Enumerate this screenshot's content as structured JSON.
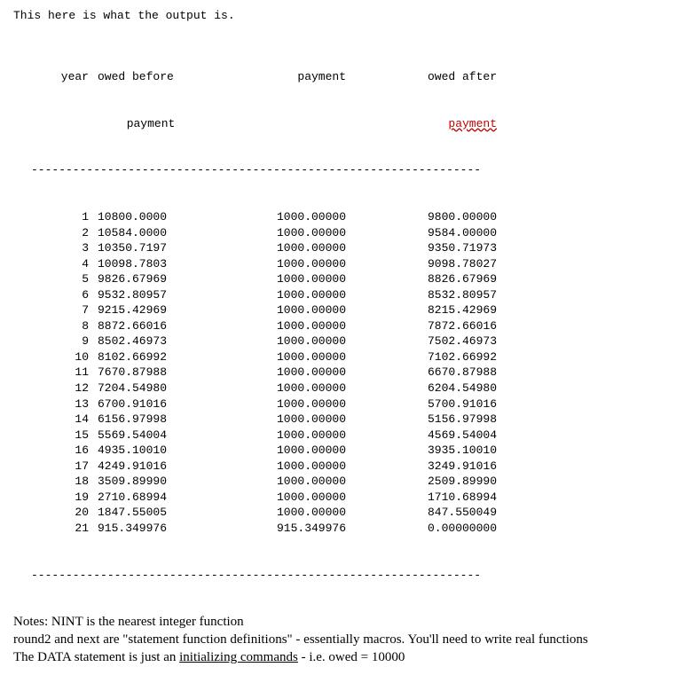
{
  "intro": "This here is what the output is.",
  "headers": {
    "year": "year",
    "owed_before_1": "owed before",
    "owed_before_2": "payment",
    "payment": "payment",
    "owed_after_1": "owed after",
    "owed_after_2": "payment"
  },
  "dashline": "-----------------------------------------------------------------",
  "rows": [
    {
      "year": "1",
      "owed_before": "10800.0000",
      "payment": "1000.00000",
      "owed_after": "9800.00000"
    },
    {
      "year": "2",
      "owed_before": "10584.0000",
      "payment": "1000.00000",
      "owed_after": "9584.00000"
    },
    {
      "year": "3",
      "owed_before": "10350.7197",
      "payment": "1000.00000",
      "owed_after": "9350.71973"
    },
    {
      "year": "4",
      "owed_before": "10098.7803",
      "payment": "1000.00000",
      "owed_after": "9098.78027"
    },
    {
      "year": "5",
      "owed_before": "9826.67969",
      "payment": "1000.00000",
      "owed_after": "8826.67969"
    },
    {
      "year": "6",
      "owed_before": "9532.80957",
      "payment": "1000.00000",
      "owed_after": "8532.80957"
    },
    {
      "year": "7",
      "owed_before": "9215.42969",
      "payment": "1000.00000",
      "owed_after": "8215.42969"
    },
    {
      "year": "8",
      "owed_before": "8872.66016",
      "payment": "1000.00000",
      "owed_after": "7872.66016"
    },
    {
      "year": "9",
      "owed_before": "8502.46973",
      "payment": "1000.00000",
      "owed_after": "7502.46973"
    },
    {
      "year": "10",
      "owed_before": "8102.66992",
      "payment": "1000.00000",
      "owed_after": "7102.66992"
    },
    {
      "year": "11",
      "owed_before": "7670.87988",
      "payment": "1000.00000",
      "owed_after": "6670.87988"
    },
    {
      "year": "12",
      "owed_before": "7204.54980",
      "payment": "1000.00000",
      "owed_after": "6204.54980"
    },
    {
      "year": "13",
      "owed_before": "6700.91016",
      "payment": "1000.00000",
      "owed_after": "5700.91016"
    },
    {
      "year": "14",
      "owed_before": "6156.97998",
      "payment": "1000.00000",
      "owed_after": "5156.97998"
    },
    {
      "year": "15",
      "owed_before": "5569.54004",
      "payment": "1000.00000",
      "owed_after": "4569.54004"
    },
    {
      "year": "16",
      "owed_before": "4935.10010",
      "payment": "1000.00000",
      "owed_after": "3935.10010"
    },
    {
      "year": "17",
      "owed_before": "4249.91016",
      "payment": "1000.00000",
      "owed_after": "3249.91016"
    },
    {
      "year": "18",
      "owed_before": "3509.89990",
      "payment": "1000.00000",
      "owed_after": "2509.89990"
    },
    {
      "year": "19",
      "owed_before": "2710.68994",
      "payment": "1000.00000",
      "owed_after": "1710.68994"
    },
    {
      "year": "20",
      "owed_before": "1847.55005",
      "payment": "1000.00000",
      "owed_after": "847.550049"
    },
    {
      "year": "21",
      "owed_before": "915.349976",
      "payment": "915.349976",
      "owed_after": "0.00000000"
    }
  ],
  "notes": {
    "l1a": "Notes: NINT is the nearest integer function",
    "l2a": "round2 and next are \"statement function definitions\" - essentially macros. You'll need to write real functions",
    "l3a": "The DATA statement is just an ",
    "l3b": "initializing commands",
    "l3c": " - i.e. owed = 10000"
  }
}
